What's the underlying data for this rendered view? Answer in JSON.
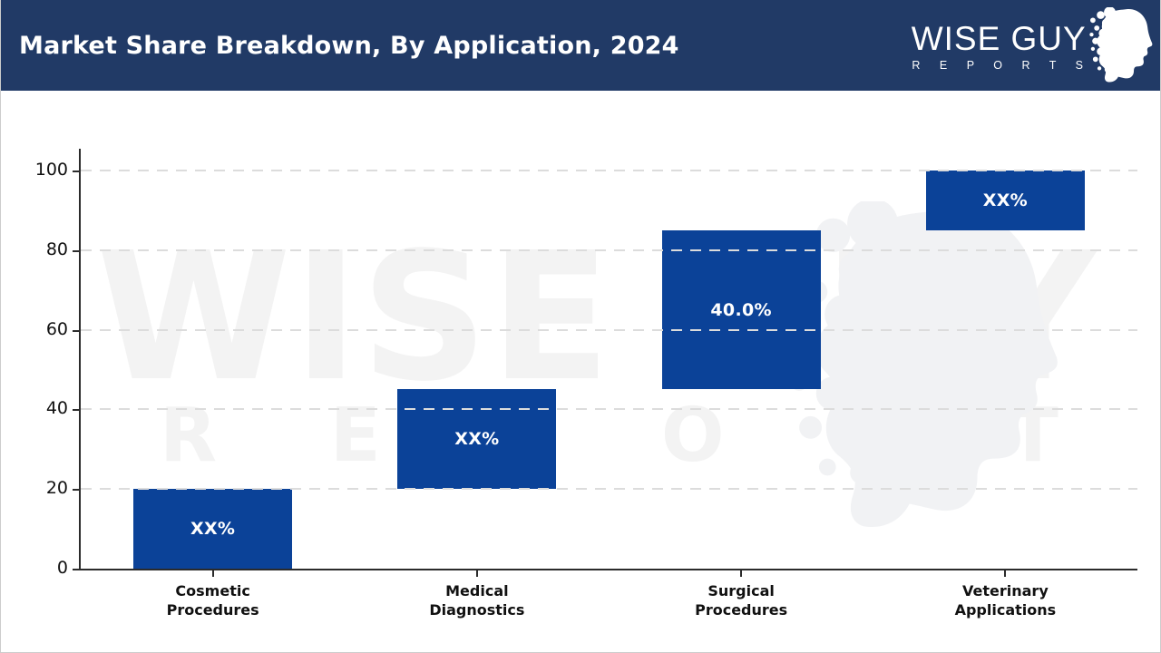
{
  "page": {
    "background": "#ffffff",
    "border_color": "#cccccc"
  },
  "header": {
    "title": "Market Share Breakdown, By Application, 2024",
    "background": "#213a66",
    "text_color": "#ffffff",
    "brand": {
      "line1": "WISE GUY",
      "line2": "R E P O R T S"
    }
  },
  "watermark": {
    "line1": "WISE GUY",
    "line2": "R E P O R T S"
  },
  "chart_data": {
    "type": "bar",
    "subtype": "floating-segment-waterfall",
    "title": "Market Share Breakdown, By Application, 2024",
    "categories": [
      "Cosmetic\nProcedures",
      "Medical\nDiagnostics",
      "Surgical\nProcedures",
      "Veterinary\nApplications"
    ],
    "bars": [
      {
        "category": "Cosmetic Procedures",
        "start": 0,
        "end": 20,
        "label": "XX%"
      },
      {
        "category": "Medical Diagnostics",
        "start": 20,
        "end": 45,
        "label": "XX%"
      },
      {
        "category": "Surgical Procedures",
        "start": 45,
        "end": 85,
        "label": "40.0%"
      },
      {
        "category": "Veterinary Applications",
        "start": 85,
        "end": 100,
        "label": "XX%"
      }
    ],
    "ylim": [
      0,
      100
    ],
    "yticks": [
      0,
      20,
      40,
      60,
      80,
      100
    ],
    "grid": {
      "horizontal": true,
      "style": "dashed",
      "color": "#dcdcdc"
    },
    "bar_color": "#0b4298",
    "bar_label_color": "#ffffff",
    "axis_color": "#2b2b2b",
    "tick_label_color": "#111111",
    "legend": null
  }
}
